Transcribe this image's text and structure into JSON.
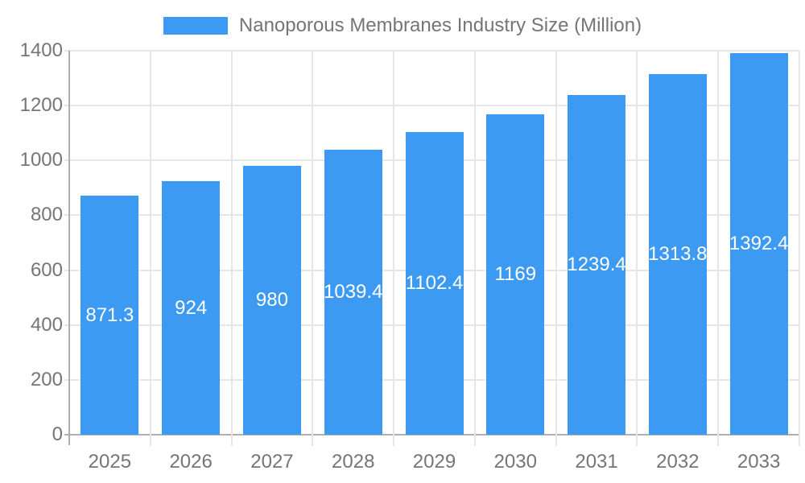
{
  "legend": {
    "label": "Nanoporous Membranes Industry Size (Million)"
  },
  "chart_data": {
    "type": "bar",
    "title": "Nanoporous Membranes Industry Size (Million)",
    "categories": [
      "2025",
      "2026",
      "2027",
      "2028",
      "2029",
      "2030",
      "2031",
      "2032",
      "2033"
    ],
    "values": [
      871.3,
      924,
      980,
      1039.4,
      1102.4,
      1169,
      1239.4,
      1313.8,
      1392.4
    ],
    "value_labels": [
      "871.3",
      "924",
      "980",
      "1039.4",
      "1102.4",
      "1169",
      "1239.4",
      "1313.8",
      "1392.4"
    ],
    "xlabel": "",
    "ylabel": "",
    "ylim": [
      0,
      1400
    ],
    "yticks": [
      0,
      200,
      400,
      600,
      800,
      1000,
      1200,
      1400
    ],
    "grid": "both",
    "legend_position": "top-center",
    "colors": {
      "bar": "#3d9af2",
      "value_text": "#ffffff",
      "axis_text": "#757575",
      "grid_line": "#e6e6e6",
      "axis_line": "#b0b0b0"
    }
  }
}
